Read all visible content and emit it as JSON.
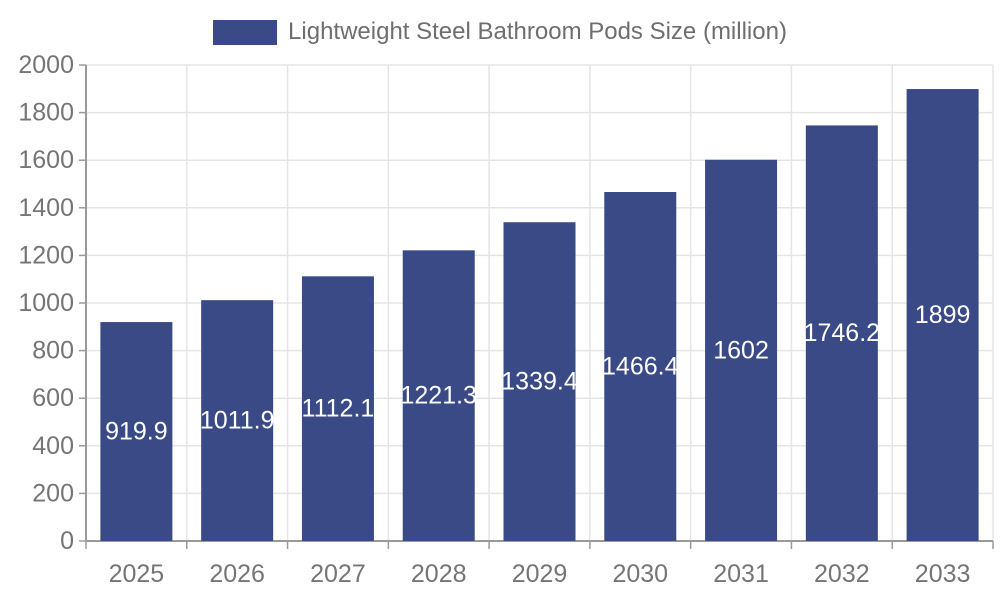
{
  "chart_data": {
    "type": "bar",
    "title": "Lightweight Steel Bathroom Pods Size (million)",
    "categories": [
      "2025",
      "2026",
      "2027",
      "2028",
      "2029",
      "2030",
      "2031",
      "2032",
      "2033"
    ],
    "values": [
      919.9,
      1011.9,
      1112.1,
      1221.3,
      1339.4,
      1466.4,
      1602,
      1746.2,
      1899
    ],
    "value_labels": [
      "919.9",
      "1011.9",
      "1112.1",
      "1221.3",
      "1339.4",
      "1466.4",
      "1602",
      "1746.2",
      "1899"
    ],
    "xlabel": "",
    "ylabel": "",
    "ylim": [
      0,
      2000
    ],
    "yticks": [
      0,
      200,
      400,
      600,
      800,
      1000,
      1200,
      1400,
      1600,
      1800,
      2000
    ],
    "grid": true,
    "legend_position": "top-center",
    "colors": {
      "bar": "#3A4A87",
      "grid": "#e5e5e5",
      "axis": "#9a9a9a",
      "tick_label": "#757575",
      "value_label": "#ffffff",
      "legend_text": "#6e6e6e",
      "background": "#ffffff"
    }
  }
}
